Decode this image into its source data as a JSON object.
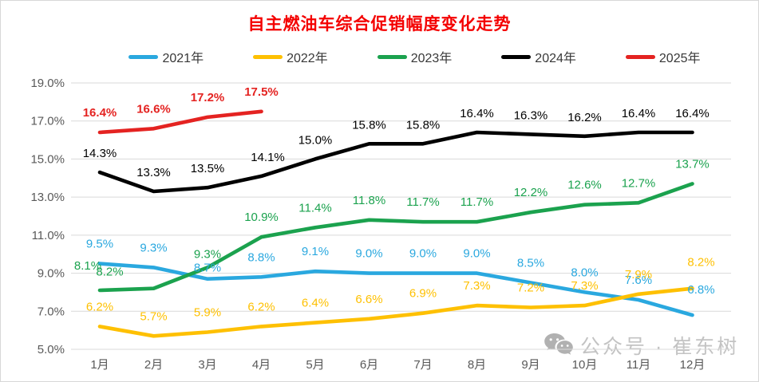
{
  "title": "自主燃油车综合促销幅度变化走势",
  "watermark": {
    "icon": "wechat-icon",
    "text": "公众号 · 崔东树"
  },
  "colors": {
    "title": "#f40000",
    "axis_text": "#595959",
    "gridline": "#d9d9d9",
    "watermark_text": "#bdbdbd",
    "series_2021": "#2aa8df",
    "series_2022": "#fec002",
    "series_2023": "#1ba24e",
    "series_2024": "#000000",
    "series_2025": "#e42321"
  },
  "chart_data": {
    "type": "line",
    "title": "自主燃油车综合促销幅度变化走势",
    "xlabel": "",
    "ylabel": "",
    "ylim": [
      5.0,
      19.0
    ],
    "y_tick_step": 2.0,
    "y_ticks": [
      "5.0%",
      "7.0%",
      "9.0%",
      "11.0%",
      "13.0%",
      "15.0%",
      "17.0%",
      "19.0%"
    ],
    "grid": "horizontal",
    "legend_position": "top",
    "value_suffix": "%",
    "categories": [
      "1月",
      "2月",
      "3月",
      "4月",
      "5月",
      "6月",
      "7月",
      "8月",
      "9月",
      "10月",
      "11月",
      "12月"
    ],
    "series": [
      {
        "name": "2021年",
        "color": "#2aa8df",
        "bold_labels": false,
        "values": [
          9.5,
          9.3,
          8.7,
          8.8,
          9.1,
          9.0,
          9.0,
          9.0,
          8.5,
          8.0,
          7.6,
          6.8
        ]
      },
      {
        "name": "2022年",
        "color": "#fec002",
        "bold_labels": false,
        "values": [
          6.2,
          5.7,
          5.9,
          6.2,
          6.4,
          6.6,
          6.9,
          7.3,
          7.2,
          7.3,
          7.9,
          8.2
        ]
      },
      {
        "name": "2023年",
        "color": "#1ba24e",
        "bold_labels": false,
        "values": [
          8.1,
          8.2,
          9.3,
          10.9,
          11.4,
          11.8,
          11.7,
          11.7,
          12.2,
          12.6,
          12.7,
          13.7
        ]
      },
      {
        "name": "2024年",
        "color": "#000000",
        "bold_labels": false,
        "values": [
          14.3,
          13.3,
          13.5,
          14.1,
          15.0,
          15.8,
          15.8,
          16.4,
          16.3,
          16.2,
          16.4,
          16.4
        ]
      },
      {
        "name": "2025年",
        "color": "#e42321",
        "bold_labels": true,
        "values": [
          16.4,
          16.6,
          17.2,
          17.5,
          null,
          null,
          null,
          null,
          null,
          null,
          null,
          null
        ]
      }
    ]
  }
}
